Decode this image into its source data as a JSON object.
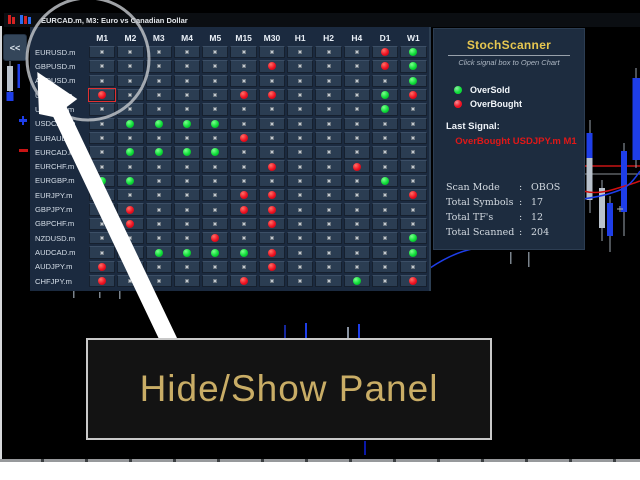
{
  "title_bar": {
    "title": "EURCAD.m, M3: Euro vs Canadian Dollar"
  },
  "collapse_button": {
    "label": "<<"
  },
  "annotation": {
    "hide_show_label": "Hide/Show Panel"
  },
  "scanner": {
    "columns": [
      "M1",
      "M2",
      "M3",
      "M4",
      "M5",
      "M15",
      "M30",
      "H1",
      "H2",
      "H4",
      "D1",
      "W1"
    ],
    "rows": [
      {
        "symbol": "EURUSD.m",
        "cells": "nnnnnnnnnnrg"
      },
      {
        "symbol": "GBPUSD.m",
        "cells": "nnnnnnrnnnrg"
      },
      {
        "symbol": "AUDUSD.m",
        "cells": "nnnnnnnnnnng"
      },
      {
        "symbol": "USDJPY.m",
        "cells": "rnnnnrrnnngr"
      },
      {
        "symbol": "USDCHF.m",
        "cells": "nnnnnnnnnngn"
      },
      {
        "symbol": "USDCAD.m",
        "cells": "nggggnnnnnnn"
      },
      {
        "symbol": "EURAUD.m",
        "cells": "nnnnnrnnnnnn"
      },
      {
        "symbol": "EURCAD.m",
        "cells": "nggggnnnnnnn"
      },
      {
        "symbol": "EURCHF.m",
        "cells": "nnnnnnrnnrnn"
      },
      {
        "symbol": "EURGBP.m",
        "cells": "ggnnnnnnnngn"
      },
      {
        "symbol": "EURJPY.m",
        "cells": "rnnnnrrnnnnr"
      },
      {
        "symbol": "GBPJPY.m",
        "cells": "rrnnnrrnnnnn"
      },
      {
        "symbol": "GBPCHF.m",
        "cells": "nrnnnnrnnnnn"
      },
      {
        "symbol": "NZDUSD.m",
        "cells": "nnnnrnnnnnng"
      },
      {
        "symbol": "AUDCAD.m",
        "cells": "nnggggrnnnng"
      },
      {
        "symbol": "AUDJPY.m",
        "cells": "rrnnnnrnnnnn"
      },
      {
        "symbol": "CHFJPY.m",
        "cells": "rnnnnrnnngnr"
      }
    ],
    "highlight": {
      "row": 3,
      "col": 0,
      "symbol": "USDJPY.m",
      "timeframe": "M1"
    }
  },
  "info_panel": {
    "title": "StochScanner",
    "subtitle": "Click signal box to Open Chart",
    "legend": [
      {
        "label": "OverSold",
        "color": "#0ddd38"
      },
      {
        "label": "OverBought",
        "color": "#ef1021"
      }
    ],
    "last_signal_label": "Last Signal:",
    "last_signal": "OverBought USDJPY.m M1",
    "stats": [
      {
        "label": "Scan Mode",
        "value": "OBOS"
      },
      {
        "label": "Total Symbols",
        "value": "17"
      },
      {
        "label": "Total TF's",
        "value": "12"
      },
      {
        "label": "Total Scanned",
        "value": "204"
      }
    ]
  },
  "colors": {
    "oversold": "#0ddd38",
    "overbought": "#ef1021",
    "accent_gold": "#e8c750",
    "panel_bg": "#1b2a3f",
    "cell_bg": "#2b3d52",
    "annotation_gold": "#c9ad66"
  }
}
